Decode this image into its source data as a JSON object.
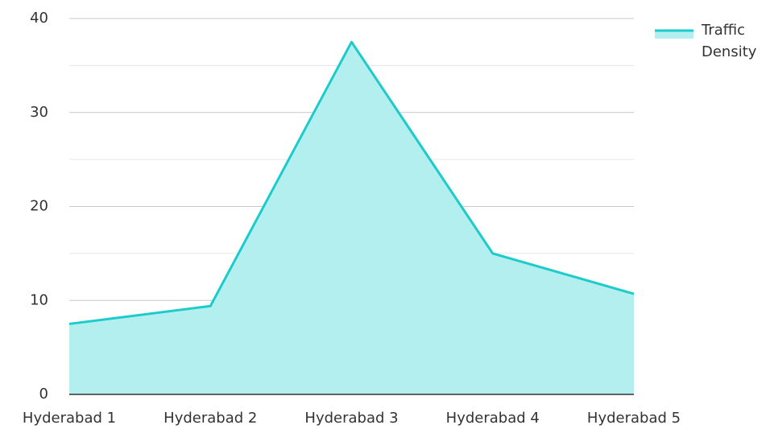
{
  "chart_data": {
    "type": "area",
    "categories": [
      "Hyderabad 1",
      "Hyderabad 2",
      "Hyderabad 3",
      "Hyderabad 4",
      "Hyderabad 5"
    ],
    "series": [
      {
        "name": "Traffic Density",
        "color": "#1ecbcb",
        "fill": "#b2efee",
        "values": [
          7.5,
          9.4,
          37.5,
          15.0,
          10.7
        ]
      }
    ],
    "ylim": [
      0,
      40
    ],
    "yticks": [
      0,
      10,
      20,
      30,
      40
    ],
    "minor_yticks": [
      5,
      15,
      25,
      35
    ],
    "grid": true,
    "legend": "top-right"
  }
}
